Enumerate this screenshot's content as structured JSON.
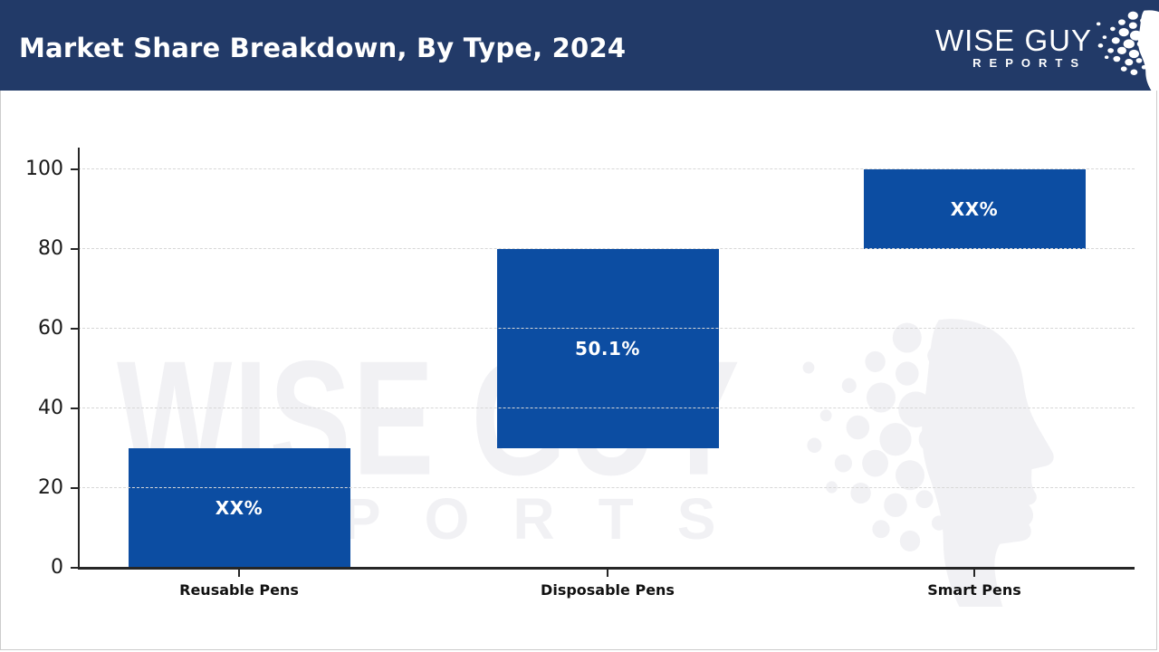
{
  "header": {
    "title": "Market Share Breakdown, By Type, 2024",
    "logo": {
      "wordmark": "WISE GUY",
      "subtext": "REPORTS"
    }
  },
  "watermark": {
    "wordmark": "WISE GUY",
    "subtext": "REPORTS"
  },
  "chart_data": {
    "type": "bar",
    "subtype": "waterfall",
    "title": "Market Share Breakdown, By Type, 2024",
    "categories": [
      "Reusable Pens",
      "Disposable Pens",
      "Smart Pens"
    ],
    "segments": [
      {
        "category": "Reusable Pens",
        "start": 0,
        "end": 30,
        "label": "XX%",
        "masked": true
      },
      {
        "category": "Disposable Pens",
        "start": 30,
        "end": 80.1,
        "label": "50.1%",
        "masked": false
      },
      {
        "category": "Smart Pens",
        "start": 80.1,
        "end": 100,
        "label": "XX%",
        "masked": true
      }
    ],
    "ylim": [
      0,
      100
    ],
    "yticks": [
      0,
      20,
      40,
      60,
      80,
      100
    ],
    "grid": "horizontal-dashed",
    "grid_over_bars": true,
    "legend": "none",
    "xlabel": "",
    "ylabel": "",
    "bar_color": "#0C4DA2",
    "bar_label_color": "#FFFFFF"
  },
  "colors": {
    "header_bg": "#223A68",
    "axis": "#262626",
    "gridline": "#D7D7D7",
    "tick_label": "#1A1A1A",
    "watermark": "#F1F1F4",
    "page_border": "#CCCCCC"
  }
}
